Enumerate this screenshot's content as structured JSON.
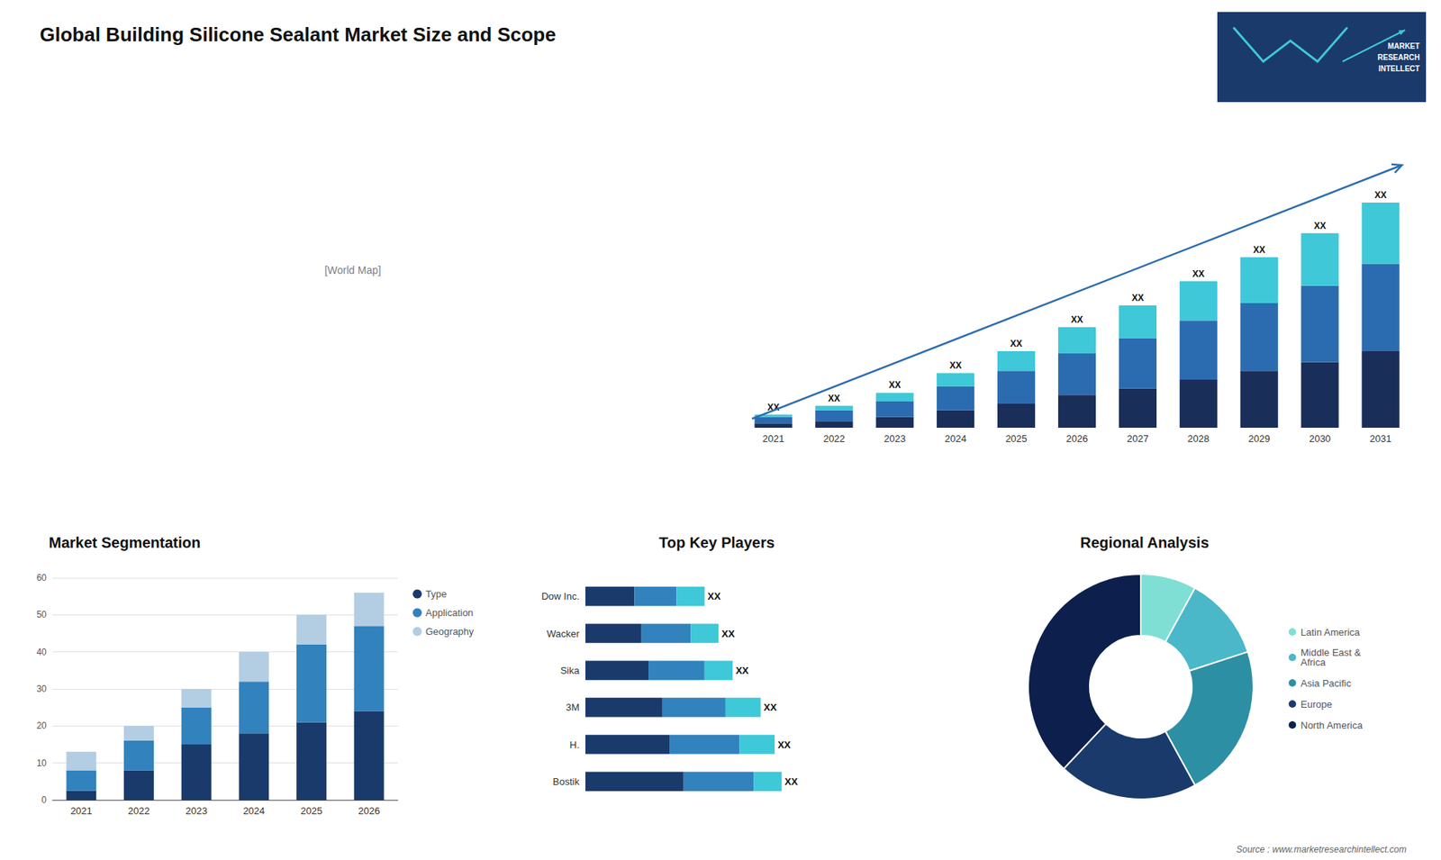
{
  "chart_data": [
    {
      "type": "map",
      "title": "Global Building Silicone Sealant Market Size and Scope",
      "annotations": [
        "[World Map]",
        "Source : www.marketresearchintellect.com",
        "MARKET\nRESEARCH\nINTELLECT"
      ]
    },
    {
      "type": "bar",
      "categories": [
        "2021",
        "2022",
        "2023",
        "2024",
        "2025",
        "2026",
        "2027",
        "2028",
        "2029",
        "2030",
        "2031"
      ],
      "series": [
        {
          "color": "#1a2e5a",
          "values": [
            1.0,
            1.5,
            2.5,
            4.0,
            5.5,
            7.5,
            9.0,
            11.0,
            13.0,
            15.0,
            17.5
          ]
        },
        {
          "color": "#2b6cb0",
          "values": [
            1.5,
            2.5,
            3.5,
            5.5,
            7.5,
            9.5,
            11.5,
            13.5,
            15.5,
            17.5,
            20.0
          ]
        },
        {
          "color": "#3ec8d8",
          "values": [
            0.5,
            1.0,
            2.0,
            3.0,
            4.5,
            6.0,
            7.5,
            9.0,
            10.5,
            12.0,
            14.0
          ]
        }
      ],
      "stacked": true,
      "ylim": [
        0,
        66.95
      ],
      "tick_labels": "x",
      "annotations": [
        "XX",
        "XX",
        "XX",
        "XX",
        "XX",
        "XX",
        "XX",
        "XX",
        "XX",
        "XX",
        "XX"
      ]
    },
    {
      "type": "bar",
      "title": "Market Segmentation",
      "categories": [
        "2021",
        "2022",
        "2023",
        "2024",
        "2025",
        "2026"
      ],
      "series": [
        {
          "name": "Type",
          "color": "#1a3a6b",
          "values": [
            2.5,
            8.0,
            15.0,
            18.0,
            21.0,
            24.0
          ]
        },
        {
          "name": "Application",
          "color": "#3182bd",
          "values": [
            5.5,
            8.0,
            10.0,
            14.0,
            21.0,
            23.0
          ]
        },
        {
          "name": "Geography",
          "color": "#b3cde3",
          "values": [
            5.0,
            4.0,
            5.0,
            8.0,
            8.0,
            9.0
          ]
        }
      ],
      "stacked": true,
      "ylim": [
        0,
        60
      ],
      "yticks": [
        0,
        10,
        20,
        30,
        40,
        50,
        60
      ],
      "grid": true,
      "legend": "right"
    },
    {
      "type": "bar",
      "orientation": "horizontal",
      "title": "Top Key Players",
      "categories": [
        "Bostik",
        "H.",
        "3M",
        "Sika",
        "Wacker",
        "Dow Inc."
      ],
      "series": [
        {
          "color": "#1a3a6b",
          "values": [
            7.0,
            6.0,
            5.5,
            4.5,
            4.0,
            3.5
          ]
        },
        {
          "color": "#3182bd",
          "values": [
            5.0,
            5.0,
            4.5,
            4.0,
            3.5,
            3.0
          ]
        },
        {
          "color": "#3ec8d8",
          "values": [
            2.0,
            2.5,
            2.5,
            2.0,
            2.0,
            2.0
          ]
        }
      ],
      "stacked": true,
      "xlim": [
        0,
        18.2
      ],
      "tick_labels": "y",
      "annotations": [
        "XX",
        "XX",
        "XX",
        "XX",
        "XX",
        "XX"
      ]
    },
    {
      "type": "pie",
      "title": "Regional Analysis",
      "categories": [
        "Latin America",
        "Middle East &\nAfrica",
        "Asia Pacific",
        "Europe",
        "North America"
      ],
      "values": [
        8,
        12,
        22,
        20,
        38
      ],
      "colors": [
        "#7fdfd4",
        "#4ab8c8",
        "#2d8fa3",
        "#1a3a6b",
        "#0d1f4c"
      ],
      "legend": "right"
    }
  ]
}
